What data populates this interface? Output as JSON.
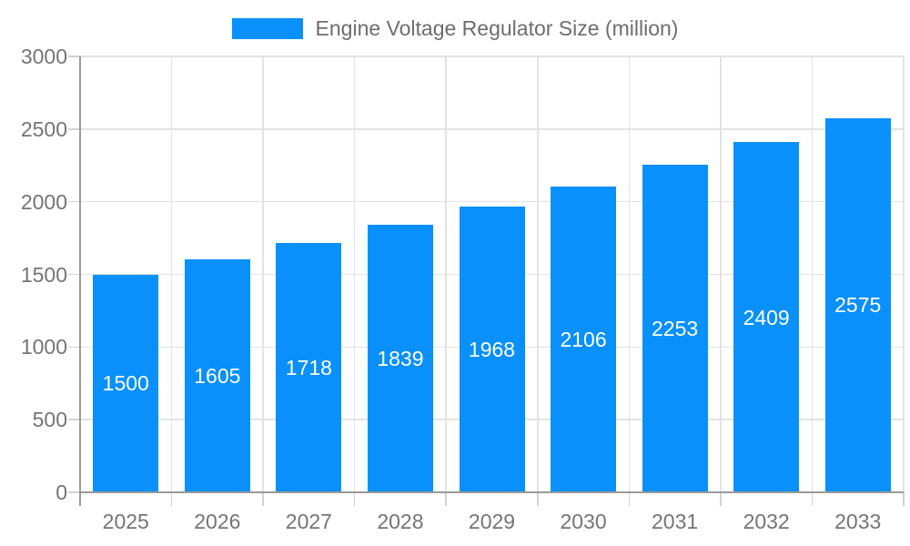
{
  "chart_data": {
    "type": "bar",
    "title": "Engine Voltage Regulator Size (million)",
    "categories": [
      "2025",
      "2026",
      "2027",
      "2028",
      "2029",
      "2030",
      "2031",
      "2032",
      "2033"
    ],
    "series": [
      {
        "name": "Engine Voltage Regulator Size (million)",
        "values": [
          1500,
          1605,
          1718,
          1839,
          1968,
          2106,
          2253,
          2409,
          2575
        ]
      }
    ],
    "bar_value_labels": [
      "1500",
      "1605",
      "1718",
      "1839",
      "1968",
      "2106",
      "2253",
      "2409",
      "2575"
    ],
    "xlabel": "",
    "ylabel": "",
    "ylim": [
      0,
      3000
    ],
    "yticks": [
      0,
      500,
      1000,
      1500,
      2000,
      2500,
      3000
    ],
    "ytick_labels": [
      "0",
      "500",
      "1000",
      "1500",
      "2000",
      "2500",
      "3000"
    ],
    "grid": true,
    "legend_position": "top-center",
    "colors": {
      "bar": "#0990fb",
      "bar_label": "#ffffff",
      "axis_text": "#757575",
      "title_text": "#6e6e6e",
      "axis_line": "#9a9a9a",
      "gridline": "#e3e3e3",
      "tick": "#d2d2d2",
      "background": "#ffffff"
    }
  }
}
